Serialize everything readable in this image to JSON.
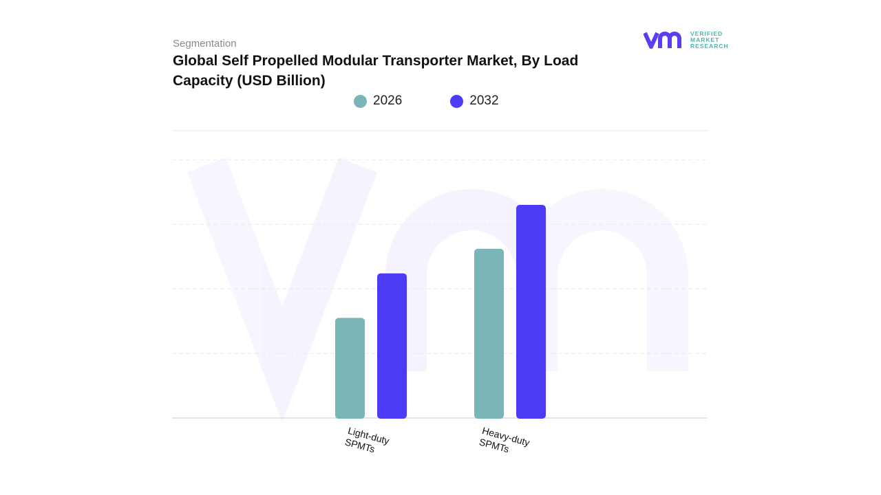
{
  "header": {
    "section": "Segmentation",
    "title": "Global Self Propelled Modular Transporter Market, By Load Capacity (USD Billion)"
  },
  "logo": {
    "line1": "VERIFIED",
    "line2": "MARKET",
    "line3": "RESEARCH",
    "mark": "vmr"
  },
  "chart_data": {
    "type": "bar",
    "title": "Global Self Propelled Modular Transporter Market, By Load Capacity (USD Billion)",
    "categories": [
      "Light-duty SPMTs",
      "Heavy-duty SPMTs"
    ],
    "series": [
      {
        "name": "2026",
        "color": "#7ab5b7",
        "values": [
          1.55,
          2.62
        ]
      },
      {
        "name": "2032",
        "color": "#4b3bf5",
        "values": [
          2.24,
          3.3
        ]
      }
    ],
    "xlabel": "",
    "ylabel": "",
    "ylim": [
      0,
      4.45
    ],
    "grid": true,
    "legend": "top-center"
  }
}
